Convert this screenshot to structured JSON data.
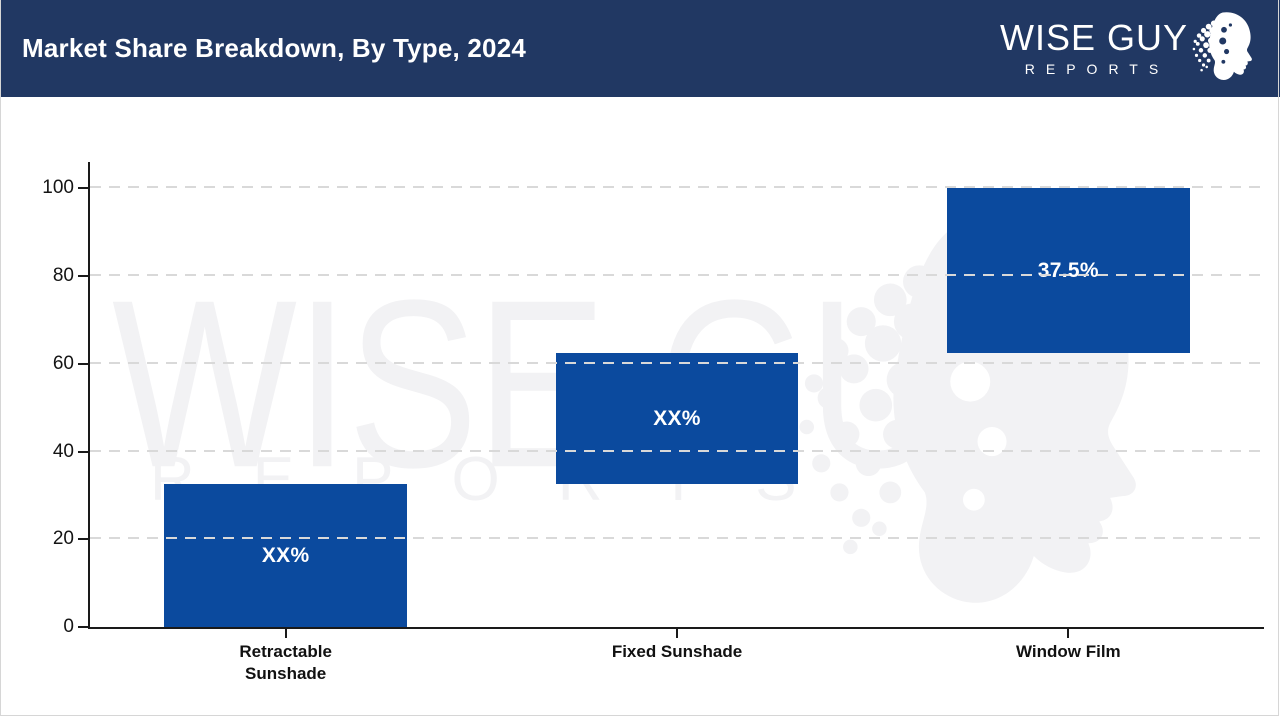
{
  "header": {
    "title": "Market Share Breakdown, By Type, 2024",
    "logo": {
      "wordmark": "WISE GUY",
      "subtitle": "REPORTS"
    }
  },
  "watermark": {
    "wordmark": "WISE GUY",
    "subtitle": "REPORTS"
  },
  "colors": {
    "header_bg": "#213863",
    "bar_fill": "#0B4A9E",
    "bar_label_text": "#FFFFFF",
    "gridline": "#D9D9D9",
    "axis": "#1A1A1A",
    "watermark": "#F2F2F4"
  },
  "chart_data": {
    "type": "bar",
    "variant": "floating segment bars (waterfall-style market share breakdown)",
    "title": "Market Share Breakdown, By Type, 2024",
    "categories": [
      "Retractable Sunshade",
      "Fixed Sunshade",
      "Window Film"
    ],
    "category_lines": [
      [
        "Retractable",
        "Sunshade"
      ],
      [
        "Fixed Sunshade"
      ],
      [
        "Window Film"
      ]
    ],
    "bars": [
      {
        "category": "Retractable Sunshade",
        "label": "XX%",
        "base": 0,
        "top": 32.5
      },
      {
        "category": "Fixed Sunshade",
        "label": "XX%",
        "base": 32.5,
        "top": 62.5
      },
      {
        "category": "Window Film",
        "label": "37.5%",
        "base": 62.5,
        "top": 100
      }
    ],
    "xlabel": "",
    "ylabel": "",
    "ylim": [
      0,
      106
    ],
    "yticks": [
      0,
      20,
      40,
      60,
      80,
      100
    ],
    "grid": "horizontal dashed, drawn over bars",
    "legend": "none",
    "bar_color": "#0B4A9E"
  }
}
